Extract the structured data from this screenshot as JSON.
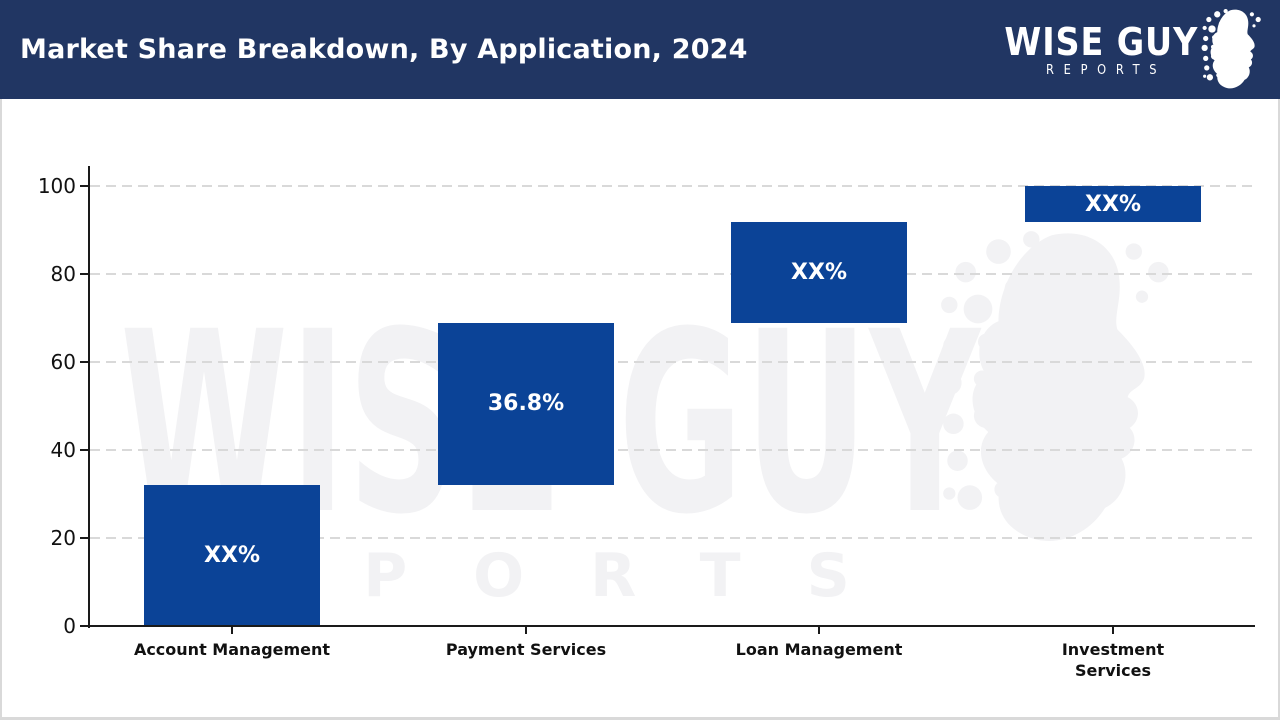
{
  "header": {
    "title": "Market Share Breakdown, By Application, 2024",
    "logo": {
      "wordmark": "WISE GUY",
      "subtext": "REPORTS"
    }
  },
  "watermark": {
    "wordmark": "WISE GUY",
    "subtext": "REPORTS"
  },
  "chart_data": {
    "type": "bar",
    "subtype": "waterfall (floating stacked segments)",
    "title": "Market Share Breakdown, By Application, 2024",
    "categories": [
      "Account Management",
      "Payment Services",
      "Loan Management",
      "Investment\nServices"
    ],
    "segments": [
      {
        "category": "Account Management",
        "label": "XX%",
        "start": 0,
        "end": 32.1
      },
      {
        "category": "Payment Services",
        "label": "36.8%",
        "start": 32.1,
        "end": 68.9
      },
      {
        "category": "Loan Management",
        "label": "XX%",
        "start": 68.9,
        "end": 91.8
      },
      {
        "category": "Investment Services",
        "label": "XX%",
        "start": 91.8,
        "end": 100
      }
    ],
    "yticks": [
      0,
      20,
      40,
      60,
      80,
      100
    ],
    "ylim": [
      0,
      100
    ],
    "xlabel": "",
    "ylabel": "",
    "grid": "horizontal dashed gridlines",
    "legend": "none",
    "bar_color": "#0b4397",
    "value_label_color": "#ffffff"
  },
  "colors": {
    "header_bg": "#213663",
    "bar": "#0b4397",
    "grid": "#d9d9d9",
    "axis": "#1a1a1a",
    "watermark": "#f2f2f4",
    "panel_bg": "#ffffff"
  }
}
